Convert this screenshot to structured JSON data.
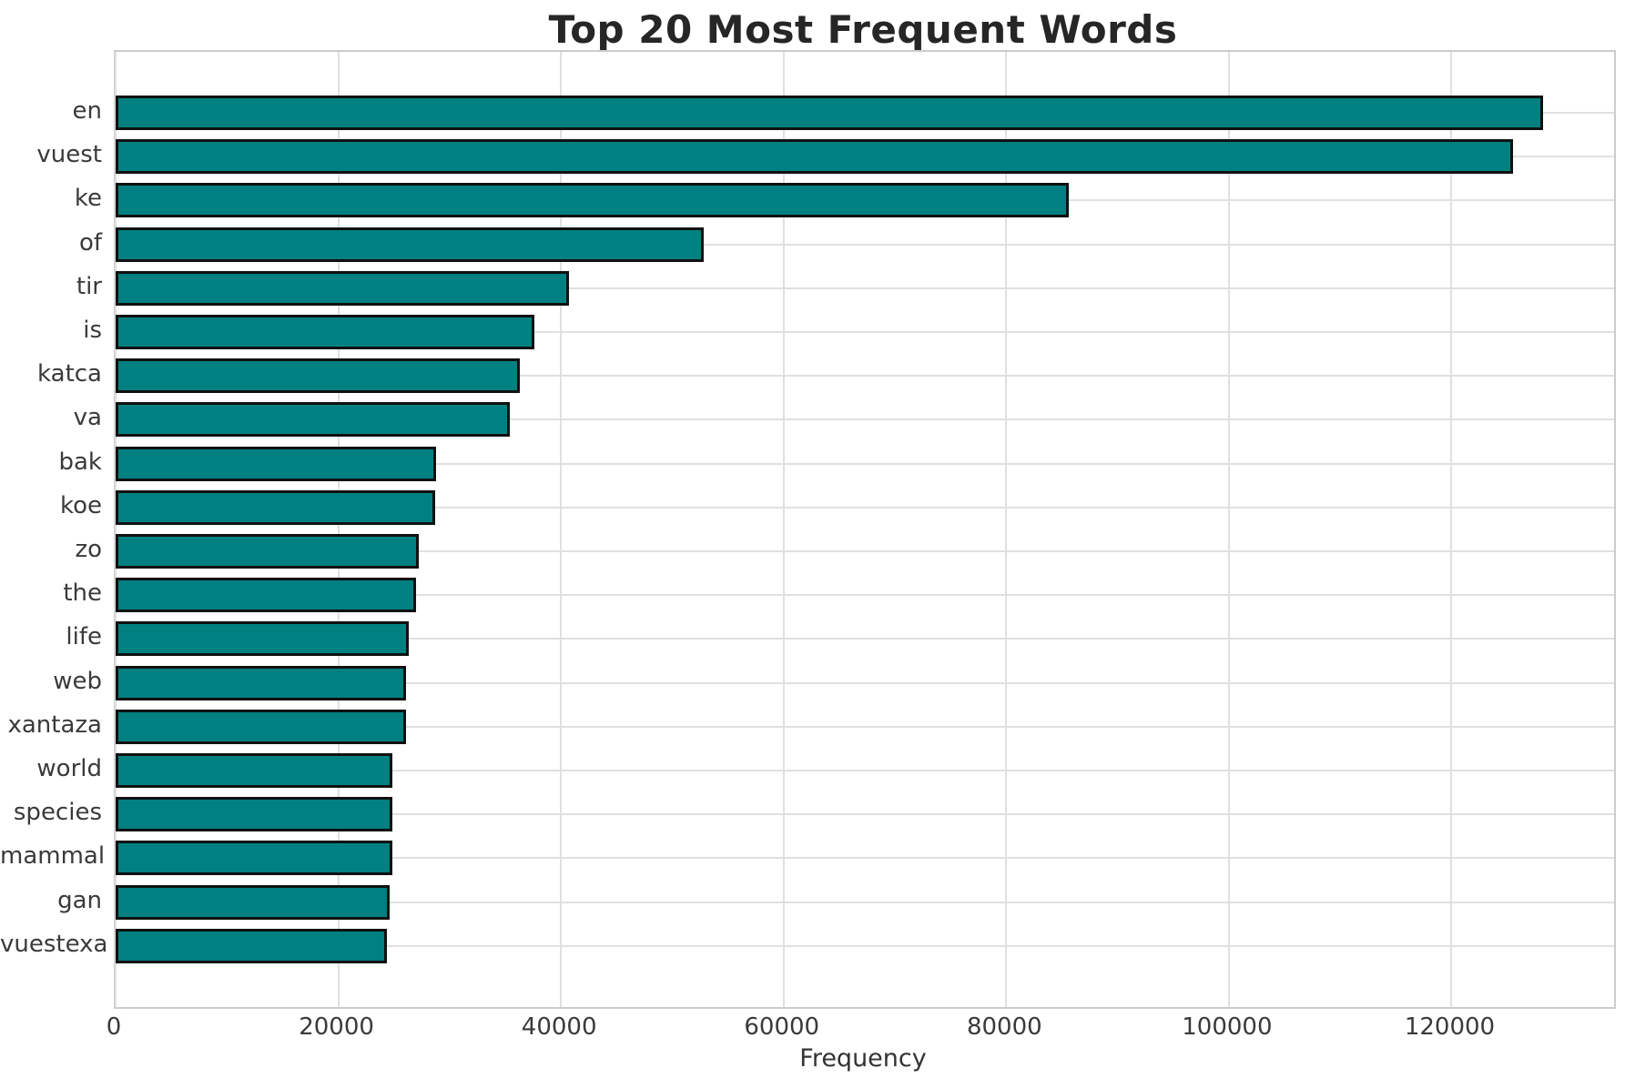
{
  "chart_data": {
    "type": "bar",
    "orientation": "horizontal",
    "title": "Top 20 Most Frequent Words",
    "xlabel": "Frequency",
    "categories": [
      "en",
      "vuest",
      "ke",
      "of",
      "tir",
      "is",
      "katca",
      "va",
      "bak",
      "koe",
      "zo",
      "the",
      "life",
      "web",
      "xantaza",
      "world",
      "species",
      "mammal",
      "gan",
      "vuestexa"
    ],
    "values": [
      128200,
      125500,
      85600,
      52800,
      40700,
      37600,
      36300,
      35400,
      28800,
      28700,
      27200,
      27000,
      26300,
      26100,
      26050,
      24900,
      24880,
      24860,
      24600,
      24400
    ],
    "xlim": [
      0,
      134600
    ],
    "xticks": [
      0,
      20000,
      40000,
      60000,
      80000,
      100000,
      120000
    ],
    "xtick_labels": [
      "0",
      "20000",
      "40000",
      "60000",
      "80000",
      "100000",
      "120000"
    ],
    "grid": true,
    "legend": "none",
    "bar_color": "#008080",
    "bar_edge_color": "#111111",
    "grid_color": "#e0e0e0",
    "spine_color": "#cccccc",
    "tick_text_color": "#3a3a3a",
    "title_color": "#262626"
  }
}
